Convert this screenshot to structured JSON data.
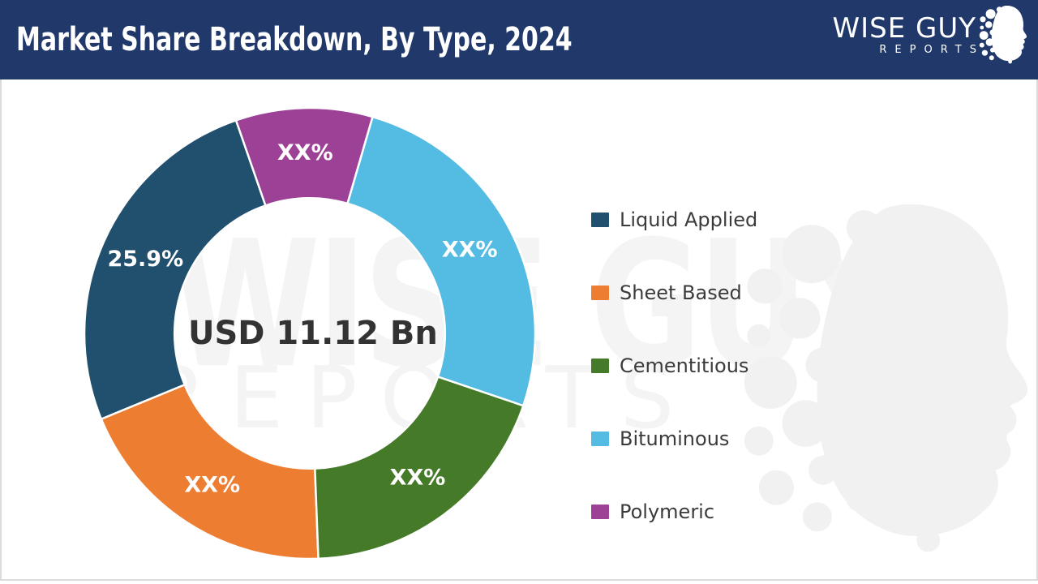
{
  "header": {
    "title": "Market Share Breakdown, By Type, 2024",
    "bg_color": "#21386B",
    "logo": {
      "brand_top": "WISE GUY",
      "brand_bottom": "REPORTS"
    }
  },
  "watermark": {
    "line1": "WISE GUY",
    "line2": "REPORTS"
  },
  "chart_data": {
    "type": "pie",
    "subtype": "donut",
    "title": "Market Share Breakdown, By Type, 2024",
    "center_label": "USD 11.12 Bn",
    "legend_position": "right",
    "start_angle_deg": 109.1,
    "direction": "counterclockwise",
    "inner_radius_ratio": 0.6,
    "gap_color": "#ffffff",
    "segments": [
      {
        "label": "Liquid Applied",
        "value_pct": 25.9,
        "display_label": "25.9%",
        "color": "#21506F"
      },
      {
        "label": "Sheet Based",
        "value_pct": 19.4,
        "display_label": "XX%",
        "color": "#ED7D31"
      },
      {
        "label": "Cementitious",
        "value_pct": 19.2,
        "display_label": "XX%",
        "color": "#447A28"
      },
      {
        "label": "Bituminous",
        "value_pct": 25.7,
        "display_label": "XX%",
        "color": "#54BBE3"
      },
      {
        "label": "Polymeric",
        "value_pct": 9.8,
        "display_label": "XX%",
        "color": "#9D4197"
      }
    ]
  }
}
